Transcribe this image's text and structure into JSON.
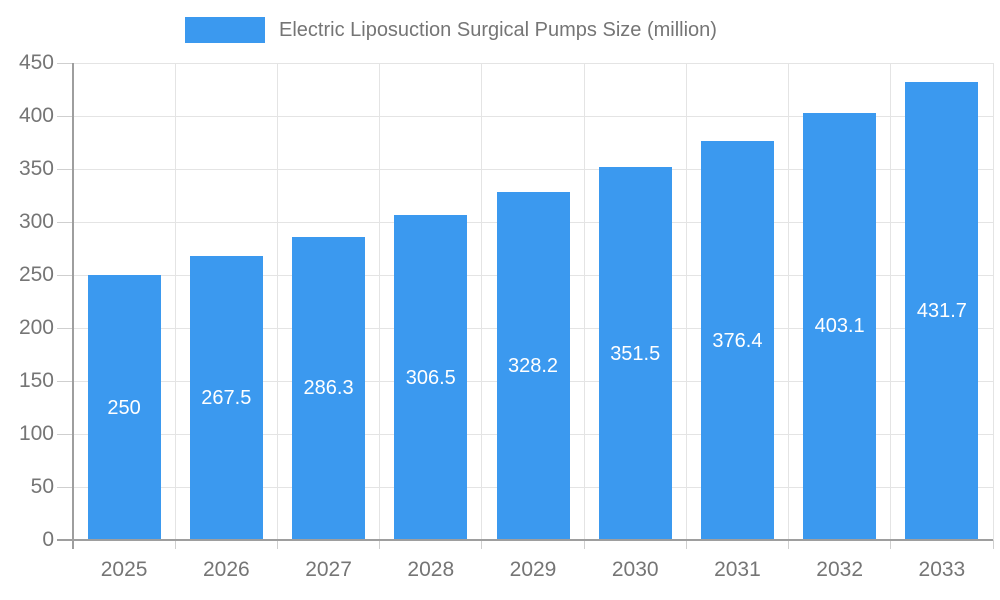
{
  "page": {
    "background_color": "#ffffff"
  },
  "legend": {
    "label": "Electric Liposuction Surgical Pumps Size (million)",
    "swatch_color": "#3B99EF"
  },
  "chart_data": {
    "type": "bar",
    "title": "Electric Liposuction Surgical Pumps Size (million)",
    "categories": [
      "2025",
      "2026",
      "2027",
      "2028",
      "2029",
      "2030",
      "2031",
      "2032",
      "2033"
    ],
    "series": [
      {
        "name": "Electric Liposuction Surgical Pumps Size (million)",
        "values": [
          250,
          267.5,
          286.3,
          306.5,
          328.2,
          351.5,
          376.4,
          403.1,
          431.7
        ]
      }
    ],
    "value_labels": [
      "250",
      "267.5",
      "286.3",
      "306.5",
      "328.2",
      "351.5",
      "376.4",
      "403.1",
      "431.7"
    ],
    "xlabel": "",
    "ylabel": "",
    "ylim": [
      0,
      450
    ],
    "yticks": [
      0,
      50,
      100,
      150,
      200,
      250,
      300,
      350,
      400,
      450
    ],
    "grid": true,
    "legend_position": "top-center",
    "colors": {
      "bar": "#3B99EF",
      "value_label": "#ffffff",
      "axis_line": "#9E9E9E",
      "gridline": "#E4E4E4",
      "tick_line": "#CFCFCF",
      "tick_text": "#757575"
    }
  }
}
